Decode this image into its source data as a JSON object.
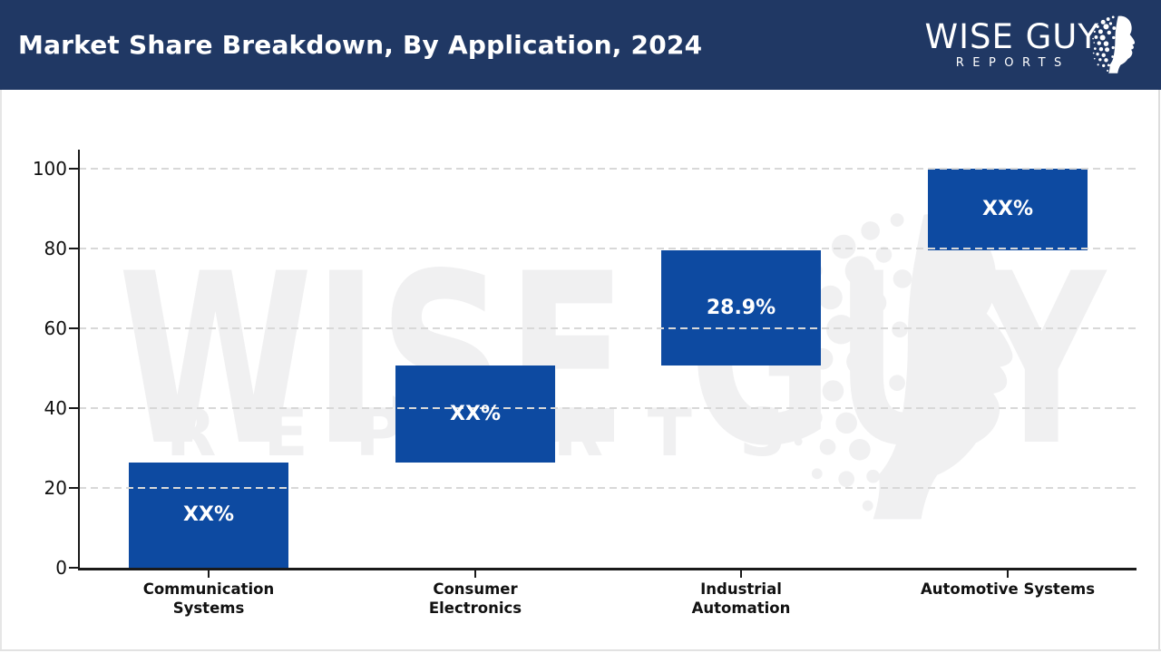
{
  "header": {
    "title": "Market Share Breakdown, By Application, 2024",
    "logo": {
      "name": "WISE GUY",
      "subname": "REPORTS"
    }
  },
  "watermark": {
    "line1": "WISE GUY",
    "line2": "REPORTS"
  },
  "colors": {
    "header_bg": "#203864",
    "bar_fill": "#0d4aa1",
    "bar_label": "#ffffff",
    "grid_line": "#d8d8d8",
    "axis_line": "#1a1a1a",
    "tick_label": "#111111",
    "watermark": "#f0f0f1"
  },
  "chart_data": {
    "type": "bar",
    "subtype": "waterfall",
    "title": "Market Share Breakdown, By Application, 2024",
    "categories": [
      "Communication Systems",
      "Consumer Electronics",
      "Industrial Automation",
      "Automotive Systems"
    ],
    "bars": [
      {
        "category": "Communication Systems",
        "label_lines": [
          "Communication",
          "Systems"
        ],
        "start": 0,
        "end": 26.4,
        "value_label": "XX%"
      },
      {
        "category": "Consumer Electronics",
        "label_lines": [
          "Consumer",
          "Electronics"
        ],
        "start": 26.4,
        "end": 50.7,
        "value_label": "XX%"
      },
      {
        "category": "Industrial Automation",
        "label_lines": [
          "Industrial",
          "Automation"
        ],
        "start": 50.7,
        "end": 79.6,
        "value_label": "28.9%"
      },
      {
        "category": "Automotive Systems",
        "label_lines": [
          "Automotive Systems"
        ],
        "start": 79.6,
        "end": 100,
        "value_label": "XX%"
      }
    ],
    "ylim": [
      0,
      100
    ],
    "yticks": [
      0,
      20,
      40,
      60,
      80,
      100
    ],
    "grid": "horizontal-dashed",
    "legend": null
  }
}
